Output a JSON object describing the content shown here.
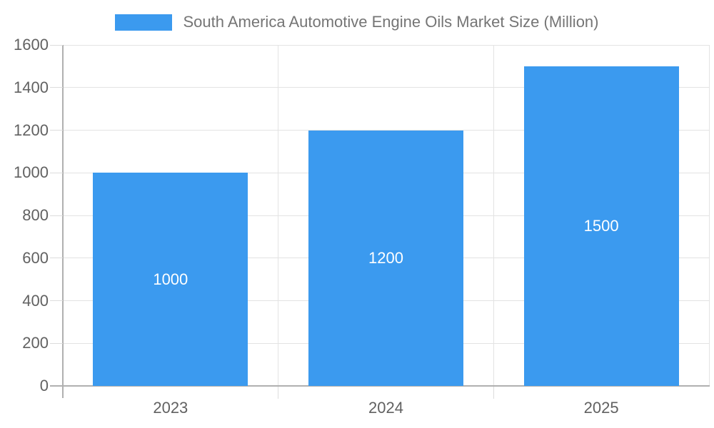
{
  "chart_data": {
    "type": "bar",
    "title": "South America Automotive Engine Oils Market Size (Million)",
    "legend": {
      "position": "top",
      "entries": [
        "South America Automotive Engine Oils Market Size (Million)"
      ]
    },
    "categories": [
      "2023",
      "2024",
      "2025"
    ],
    "values": [
      1000,
      1200,
      1500
    ],
    "bar_value_labels": [
      "1000",
      "1200",
      "1500"
    ],
    "xlabel": "",
    "ylabel": "",
    "ylim": [
      0,
      1600
    ],
    "yticks": [
      0,
      200,
      400,
      600,
      800,
      1000,
      1200,
      1400,
      1600
    ],
    "grid": true,
    "colors": {
      "bar": "#3b9aef",
      "bar_value_label": "#ffffff",
      "legend_text": "#757575",
      "tick_label": "#616161",
      "axis_line": "#b0b0b0",
      "gridline": "#e3e3e3",
      "background": "#ffffff"
    }
  }
}
